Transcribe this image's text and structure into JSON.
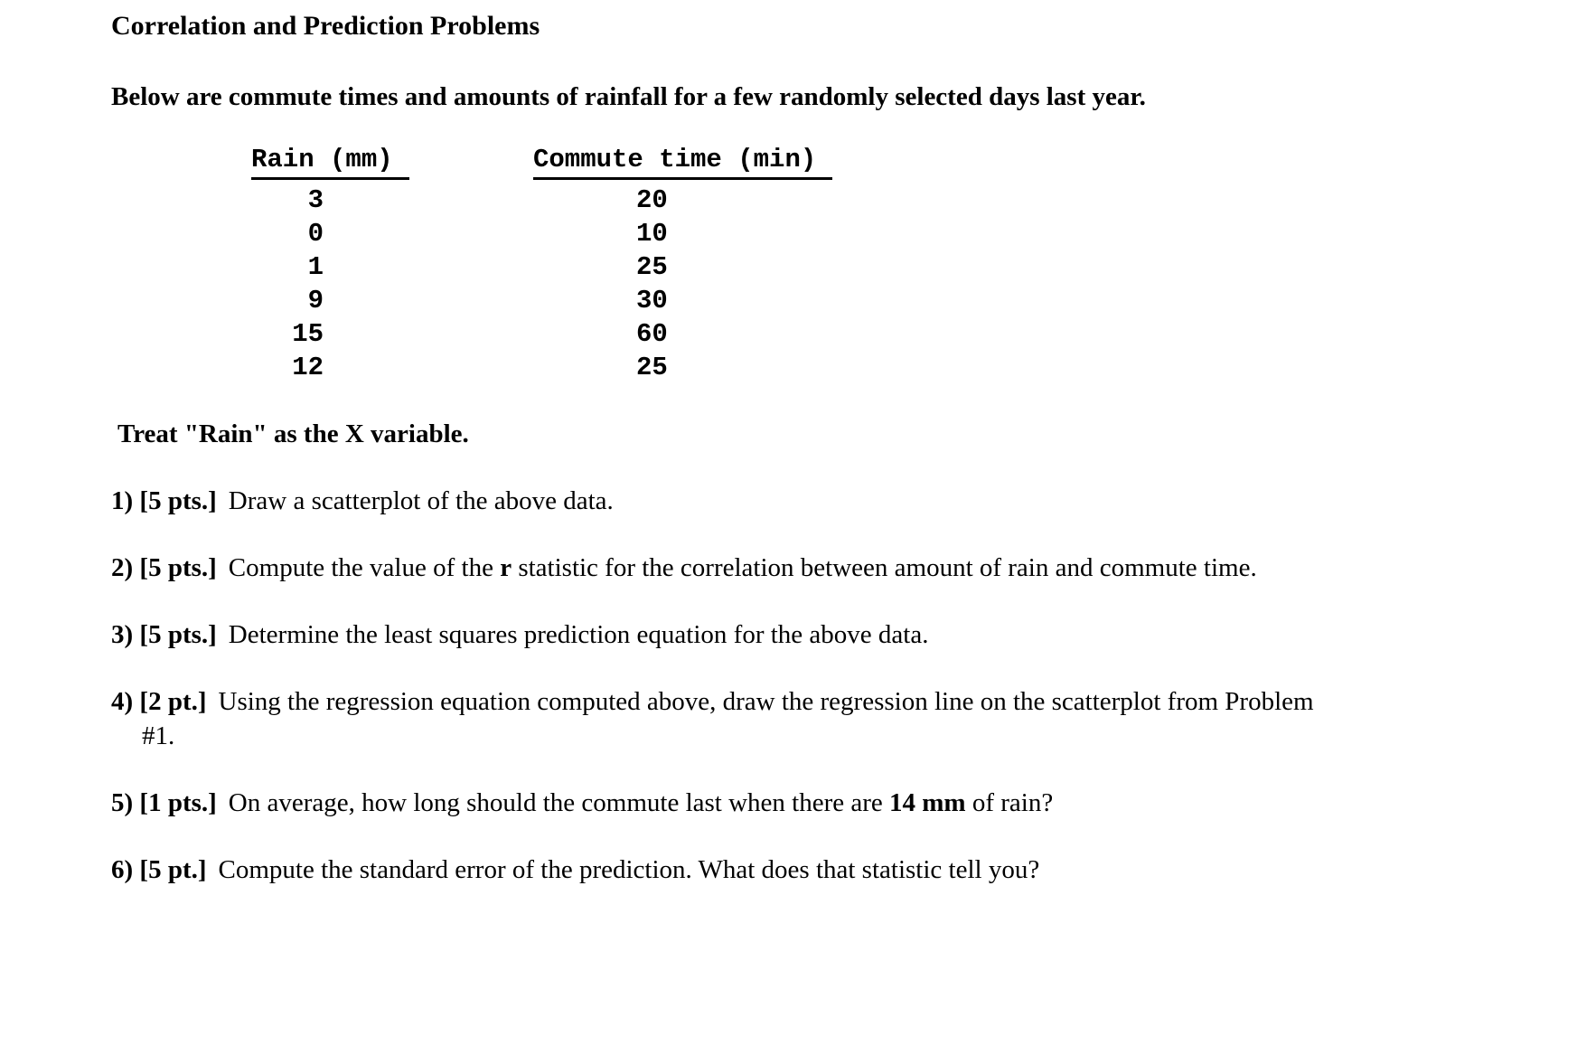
{
  "page": {
    "title": "Correlation and Prediction Problems",
    "intro": "Below are commute times and amounts of rainfall for a few randomly selected days last year.",
    "note": "Treat \"Rain\" as the X variable."
  },
  "table": {
    "col1_header": "Rain (mm)",
    "col2_header": "Commute time (min)",
    "rows": [
      {
        "rain": "3",
        "commute": "20"
      },
      {
        "rain": "0",
        "commute": "10"
      },
      {
        "rain": "1",
        "commute": "25"
      },
      {
        "rain": "9",
        "commute": "30"
      },
      {
        "rain": "15",
        "commute": "60"
      },
      {
        "rain": "12",
        "commute": "25"
      }
    ]
  },
  "problems": [
    {
      "label": "1) [5 pts.]",
      "before": "Draw a scatterplot of the above data.",
      "bold": "",
      "after": ""
    },
    {
      "label": "2) [5 pts.]",
      "before": "Compute the value of the ",
      "bold": "r",
      "after": " statistic for the correlation between amount of rain and commute time."
    },
    {
      "label": "3) [5 pts.]",
      "before": "Determine the least squares prediction equation for the above data.",
      "bold": "",
      "after": ""
    },
    {
      "label": "4) [2 pt.]",
      "before": "Using the regression equation computed above, draw the regression line on the scatterplot from Problem #1.",
      "bold": "",
      "after": ""
    },
    {
      "label": "5) [1 pts.]",
      "before": "On average, how long should the commute last when there are ",
      "bold": "14 mm",
      "after": " of rain?"
    },
    {
      "label": "6) [5 pt.]",
      "before": "Compute the standard error of the prediction. What does that statistic tell you?",
      "bold": "",
      "after": ""
    }
  ]
}
